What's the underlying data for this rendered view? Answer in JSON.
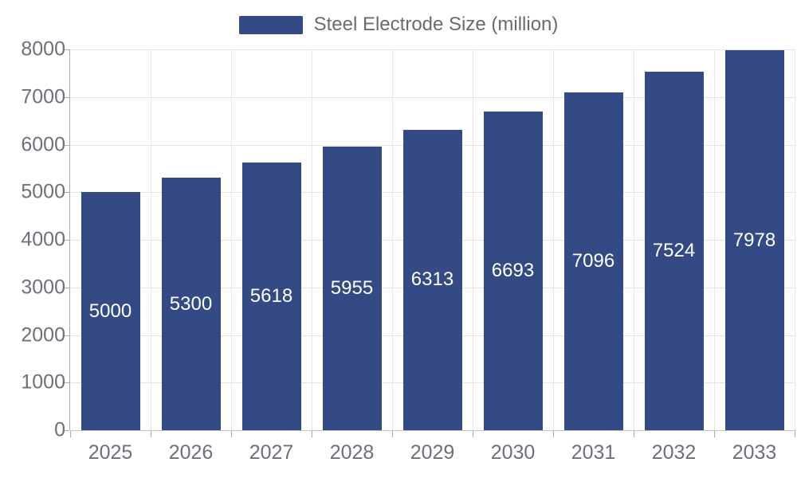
{
  "legend": {
    "label": "Steel Electrode Size (million)"
  },
  "chart_data": {
    "type": "bar",
    "title": "",
    "series_name": "Steel Electrode Size (million)",
    "categories": [
      "2025",
      "2026",
      "2027",
      "2028",
      "2029",
      "2030",
      "2031",
      "2032",
      "2033"
    ],
    "values": [
      5000,
      5300,
      5618,
      5955,
      6313,
      6693,
      7096,
      7524,
      7978
    ],
    "xlabel": "",
    "ylabel": "",
    "ylim": [
      0,
      8000
    ],
    "y_ticks": [
      0,
      1000,
      2000,
      3000,
      4000,
      5000,
      6000,
      7000,
      8000
    ],
    "grid": true,
    "legend_position": "top",
    "bar_labels_visible": true,
    "colors": {
      "bar": "#344a84",
      "bar_label": "#ffffff",
      "axis_text": "#6e7079",
      "legend_text": "#6b6b6b",
      "gridline": "#e3e3e3",
      "axis_line": "#a8a8a8"
    }
  }
}
